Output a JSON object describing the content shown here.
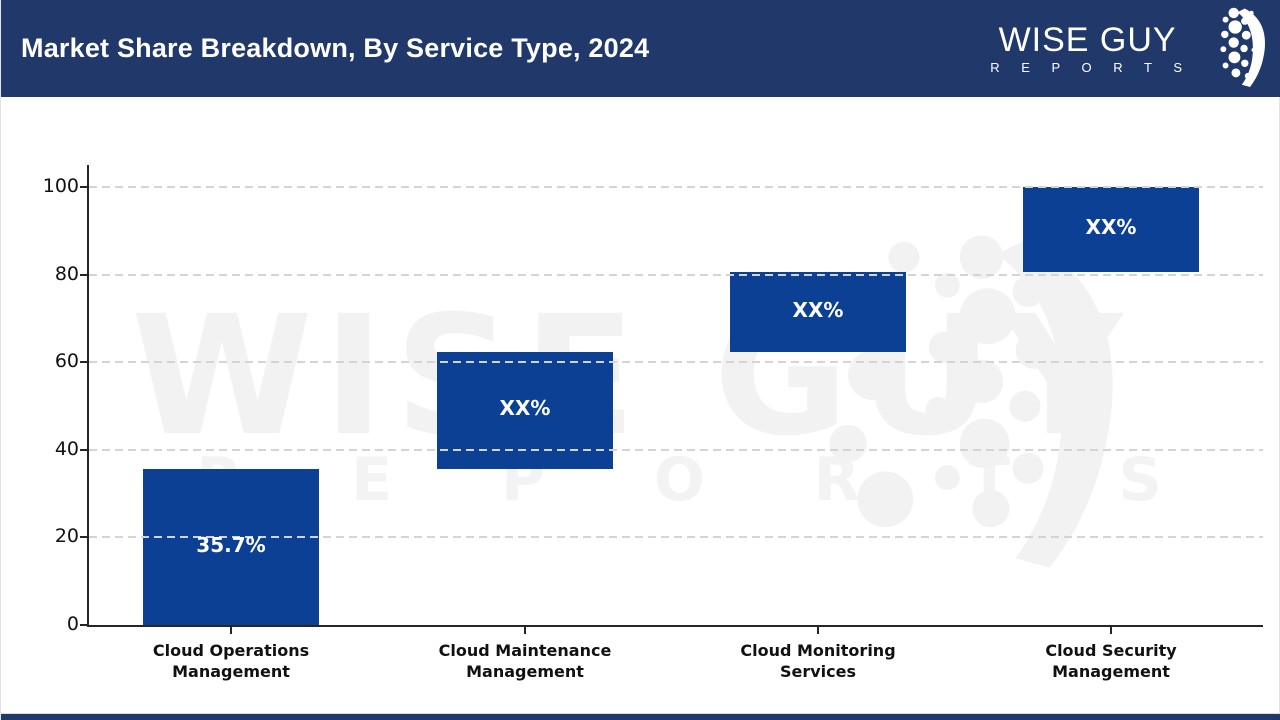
{
  "header": {
    "title": "Market Share Breakdown, By Service Type, 2024",
    "background_color": "#21386a",
    "logo": {
      "line1": "WISE GUY",
      "line2": "R E P O R T S"
    }
  },
  "watermark": {
    "line1": "WISE GUY",
    "line2": "R E P O R T S",
    "color": "#f2f2f2"
  },
  "chart_data": {
    "type": "bar",
    "subtype": "waterfall",
    "title": "Market Share Breakdown, By Service Type, 2024",
    "categories": [
      "Cloud Operations\nManagement",
      "Cloud Maintenance\nManagement",
      "Cloud Monitoring\nServices",
      "Cloud Security\nManagement"
    ],
    "segments": [
      {
        "category": "Cloud Operations Management",
        "start": 0,
        "end": 35.7,
        "label": "35.7%"
      },
      {
        "category": "Cloud Maintenance Management",
        "start": 35.7,
        "end": 62.3,
        "label": "XX%"
      },
      {
        "category": "Cloud Monitoring Services",
        "start": 62.3,
        "end": 80.6,
        "label": "XX%"
      },
      {
        "category": "Cloud Security Management",
        "start": 80.6,
        "end": 100,
        "label": "XX%"
      }
    ],
    "yticks": [
      0,
      20,
      40,
      60,
      80,
      100
    ],
    "ylim": [
      0,
      100
    ],
    "xlabel": "",
    "ylabel": "",
    "grid": "horizontal-dashed",
    "grid_over_bars": true,
    "bar_color": "#0b4094",
    "bar_label_color": "#ffffff",
    "axis_color": "#262626",
    "legend": "none"
  },
  "footer": {
    "bar_color": "#21386a"
  }
}
